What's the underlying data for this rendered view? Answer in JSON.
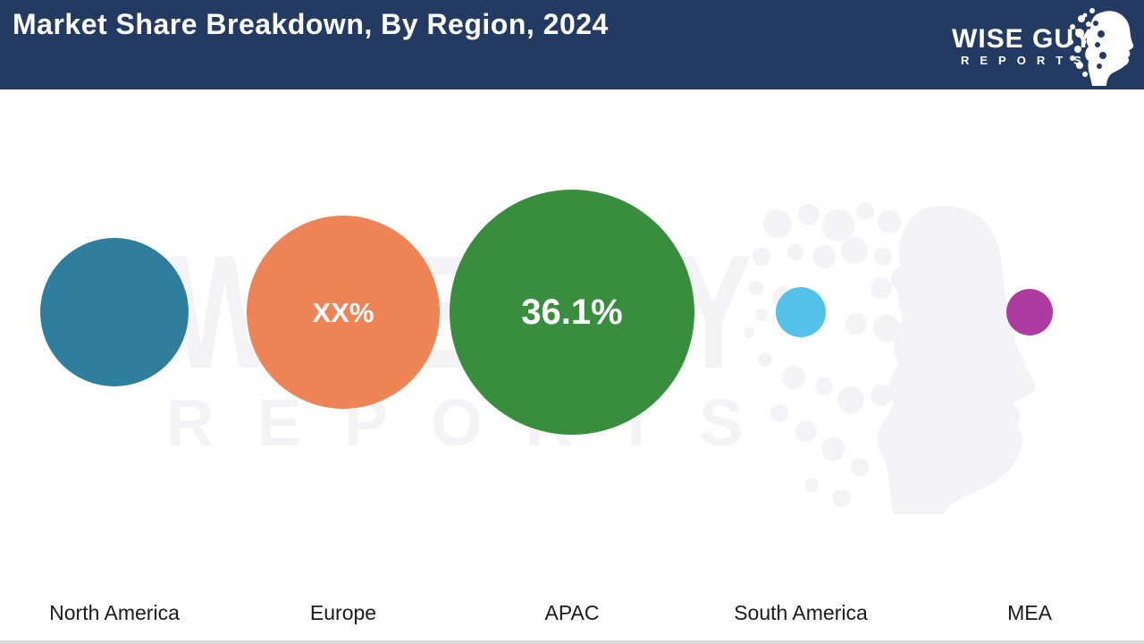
{
  "header": {
    "title": "Market Share Breakdown, By Region, 2024",
    "bg_color": "#233a63",
    "logo": {
      "wordmark": "WISE GUY",
      "reports": "REPORTS"
    }
  },
  "watermark": {
    "wordmark": "WISE GUY",
    "reports": "REPORTS"
  },
  "chart_data": {
    "type": "scatter",
    "variant": "bubble",
    "title": "Market Share Breakdown, By Region, 2024",
    "legend": "none",
    "grid": false,
    "categories": [
      "North America",
      "Europe",
      "APAC",
      "South America",
      "MEA"
    ],
    "points": [
      {
        "category": "North America",
        "share_label": "",
        "bubble_radius_px": 83,
        "color": "#2f7e9d"
      },
      {
        "category": "Europe",
        "share_label": "XX%",
        "bubble_radius_px": 108,
        "color": "#ee8355"
      },
      {
        "category": "APAC",
        "share_label": "36.1%",
        "bubble_radius_px": 137,
        "color": "#388e3c"
      },
      {
        "category": "South America",
        "share_label": "",
        "bubble_radius_px": 28,
        "color": "#53c1ea"
      },
      {
        "category": "MEA",
        "share_label": "",
        "bubble_radius_px": 26,
        "color": "#ad3a9f"
      }
    ]
  },
  "colors": {
    "header_bg": "#233a63",
    "watermark": "#f3f3f5",
    "bubble_label": "#ffffff",
    "category_label": "#1a1a1a",
    "bottom_strip": "#d9d9d9"
  }
}
